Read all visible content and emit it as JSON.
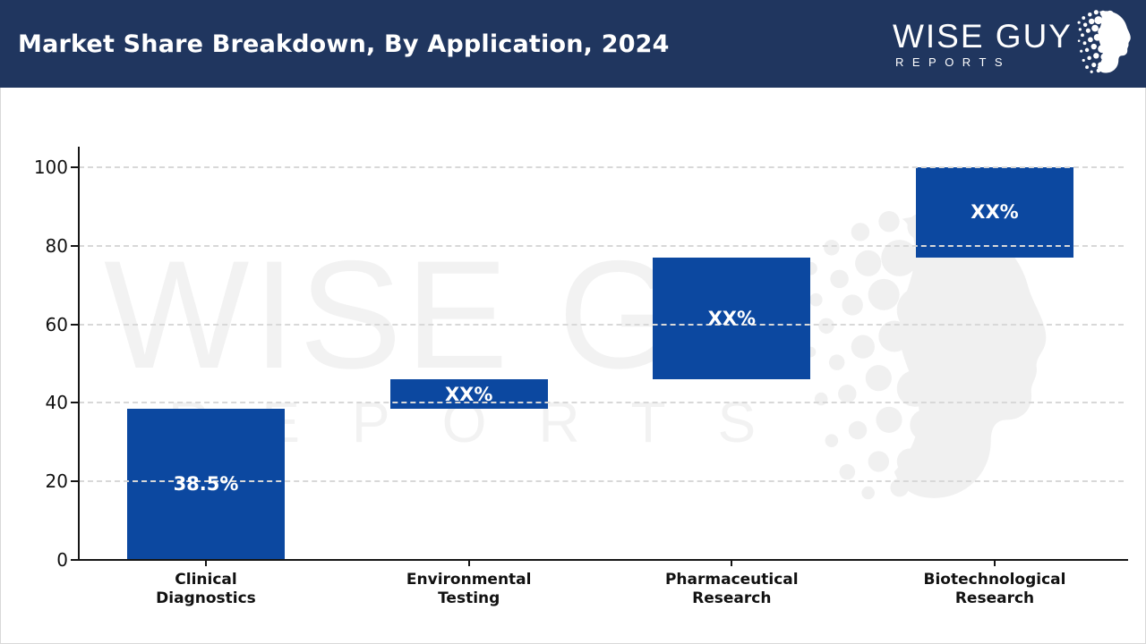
{
  "header": {
    "title": "Market Share Breakdown, By Application, 2024"
  },
  "logo": {
    "line1": "WISE GUY",
    "line2": "REPORTS"
  },
  "watermark": {
    "line1": "WISE GU",
    "line2": "REPORTS"
  },
  "chart_data": {
    "type": "bar",
    "subtype": "waterfall",
    "title": "Market Share Breakdown, By Application, 2024",
    "categories": [
      "Clinical Diagnostics",
      "Environmental Testing",
      "Pharmaceutical Research",
      "Biotechnological Research"
    ],
    "category_lines": [
      [
        "Clinical",
        "Diagnostics"
      ],
      [
        "Environmental",
        "Testing"
      ],
      [
        "Pharmaceutical",
        "Research"
      ],
      [
        "Biotechnological",
        "Research"
      ]
    ],
    "segments": [
      {
        "category": "Clinical Diagnostics",
        "label": "38.5%",
        "start": 0,
        "end": 38.5,
        "value": 38.5
      },
      {
        "category": "Environmental Testing",
        "label": "XX%",
        "start": 38.5,
        "end": 46,
        "value": 7.5
      },
      {
        "category": "Pharmaceutical Research",
        "label": "XX%",
        "start": 46,
        "end": 77,
        "value": 31
      },
      {
        "category": "Biotechnological Research",
        "label": "XX%",
        "start": 77,
        "end": 100,
        "value": 23
      }
    ],
    "yticks": [
      0,
      20,
      40,
      60,
      80,
      100
    ],
    "ylim": [
      0,
      100
    ],
    "grid": "dashed-horizontal",
    "legend": false,
    "bar_color": "#0c48a0"
  },
  "colors": {
    "header_bg": "#20365f",
    "bar": "#0c48a0",
    "grid": "#d8d8d8",
    "axis": "#151515",
    "watermark": "#f2f2f2",
    "title_text": "#ffffff",
    "bar_label_text": "#ffffff"
  }
}
